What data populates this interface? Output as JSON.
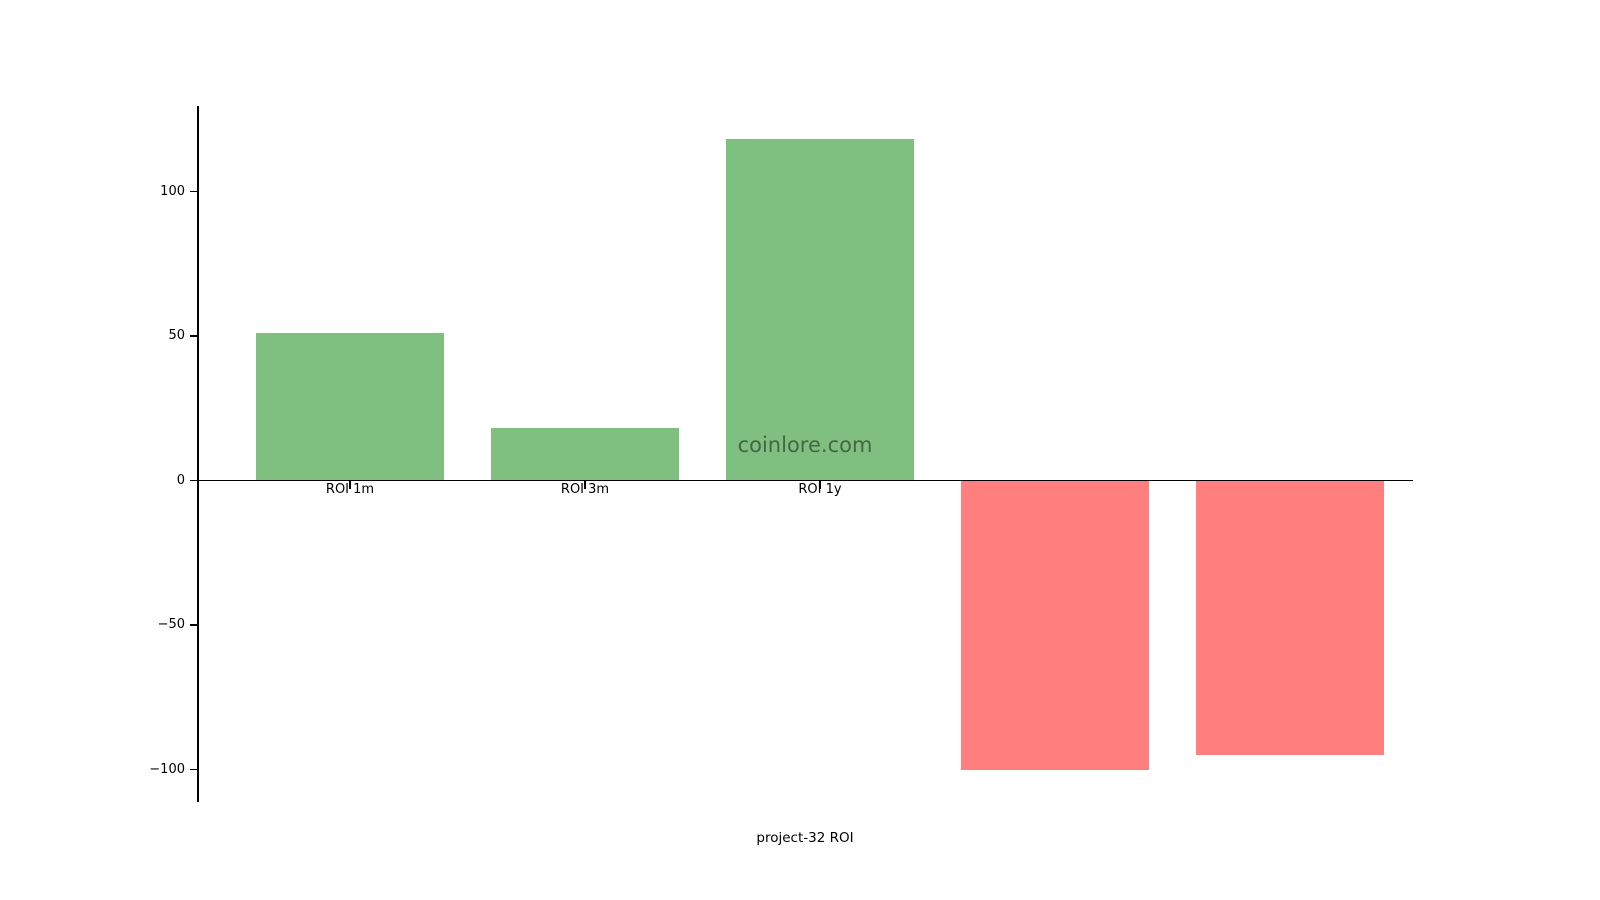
{
  "chart_data": {
    "type": "bar",
    "xlabel": "project-32 ROI",
    "ylabel": "",
    "title": "",
    "watermark": "coinlore.com",
    "categories": [
      "ROI 1m",
      "ROI 3m",
      "ROI 1y",
      "",
      ""
    ],
    "values": [
      51,
      18,
      118,
      -100,
      -95
    ],
    "positive_color": "#7fbf7f",
    "negative_color": "#ff7f7f",
    "yticks": [
      100,
      50,
      0,
      -50,
      -100
    ],
    "ylim": [
      -111,
      130
    ],
    "grid": false,
    "legend": null,
    "axis_color": "#000000",
    "text_color": "#000000"
  }
}
